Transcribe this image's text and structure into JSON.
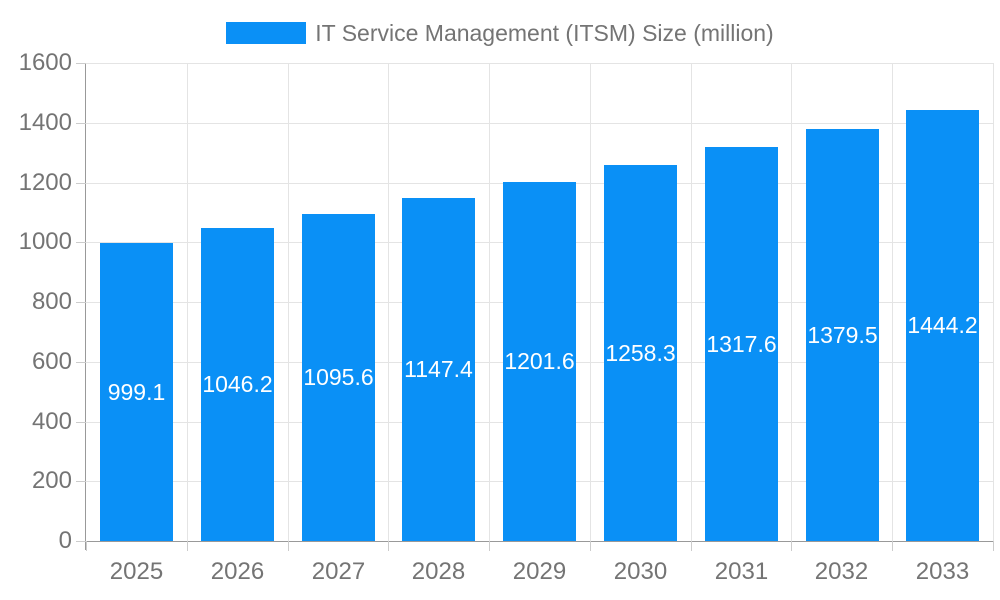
{
  "chart_data": {
    "type": "bar",
    "title": "IT Service Management (ITSM) Size (million)",
    "categories": [
      "2025",
      "2026",
      "2027",
      "2028",
      "2029",
      "2030",
      "2031",
      "2032",
      "2033"
    ],
    "values": [
      999.1,
      1046.2,
      1095.6,
      1147.4,
      1201.6,
      1258.3,
      1317.6,
      1379.5,
      1444.2
    ],
    "value_labels": [
      "999.1",
      "1046.2",
      "1095.6",
      "1147.4",
      "1201.6",
      "1258.3",
      "1317.6",
      "1379.5",
      "1444.2"
    ],
    "xlabel": "",
    "ylabel": "",
    "ylim": [
      0,
      1600
    ],
    "y_ticks": [
      "0",
      "200",
      "400",
      "600",
      "800",
      "1000",
      "1200",
      "1400",
      "1600"
    ],
    "grid": true,
    "legend_position": "top-center",
    "legend_label": "IT Service Management (ITSM) Size (million)",
    "colors": {
      "bar": "#0a90f6",
      "grid": "#e4e4e4",
      "axis": "#999999",
      "tick": "#cccccc",
      "text": "#747474",
      "bar_label": "#ffffff",
      "background": "#ffffff"
    }
  }
}
